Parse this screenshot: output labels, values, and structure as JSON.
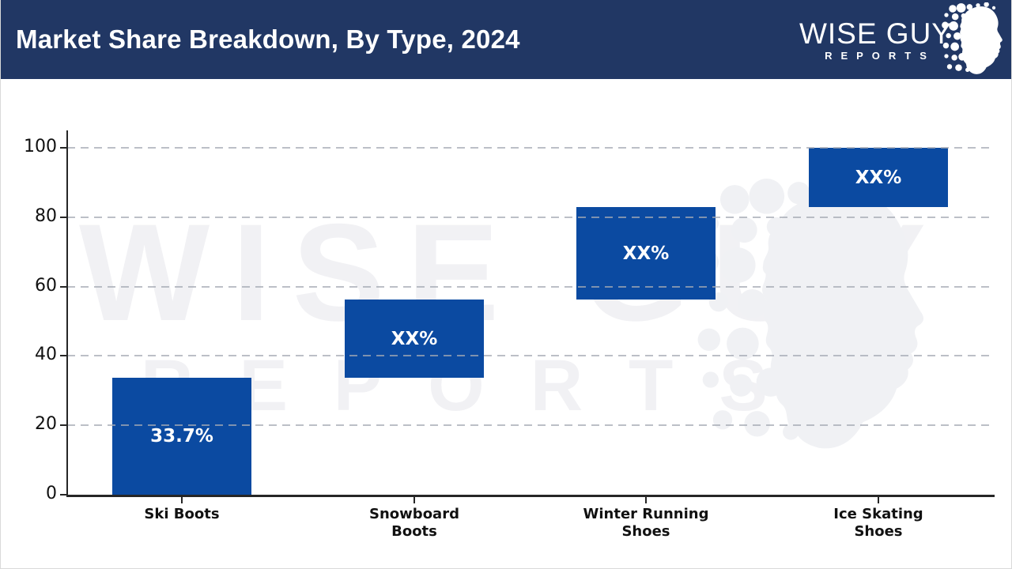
{
  "page": {
    "border_color": "#d9d9d9",
    "background": "#ffffff"
  },
  "header": {
    "title": "Market Share Breakdown, By Type, 2024",
    "background": "#213764",
    "logo": {
      "line1": "WISE GUY",
      "line2": "REPORTS",
      "icon": "head-profile-dots-icon",
      "color": "#ffffff"
    }
  },
  "watermark": {
    "line1": "WISE GUY",
    "line2": "REPORTS",
    "color": "#f1f1f4"
  },
  "chart_data": {
    "type": "bar",
    "subtype": "floating-waterfall",
    "title": "Market Share Breakdown, By Type, 2024",
    "categories": [
      "Ski Boots",
      "Snowboard Boots",
      "Winter Running Shoes",
      "Ice Skating Shoes"
    ],
    "bars": [
      {
        "category": "Ski Boots",
        "start": 0,
        "end": 33.7,
        "label": "33.7%"
      },
      {
        "category": "Snowboard Boots",
        "start": 33.7,
        "end": 56.3,
        "label": "XX%"
      },
      {
        "category": "Winter Running Shoes",
        "start": 56.3,
        "end": 83.0,
        "label": "XX%"
      },
      {
        "category": "Ice Skating Shoes",
        "start": 83.0,
        "end": 100.0,
        "label": "XX%"
      }
    ],
    "ylim": [
      0,
      100
    ],
    "yticks": [
      0,
      20,
      40,
      60,
      80,
      100
    ],
    "xlabel": "",
    "ylabel": "",
    "grid": "dashed-horizontal-over-bars",
    "legend": "none",
    "bar_color": "#0b4aa1",
    "bar_label_color": "#ffffff",
    "axis_color": "#262626",
    "grid_color": "#d9d9d9",
    "tick_label_color": "#111111"
  }
}
